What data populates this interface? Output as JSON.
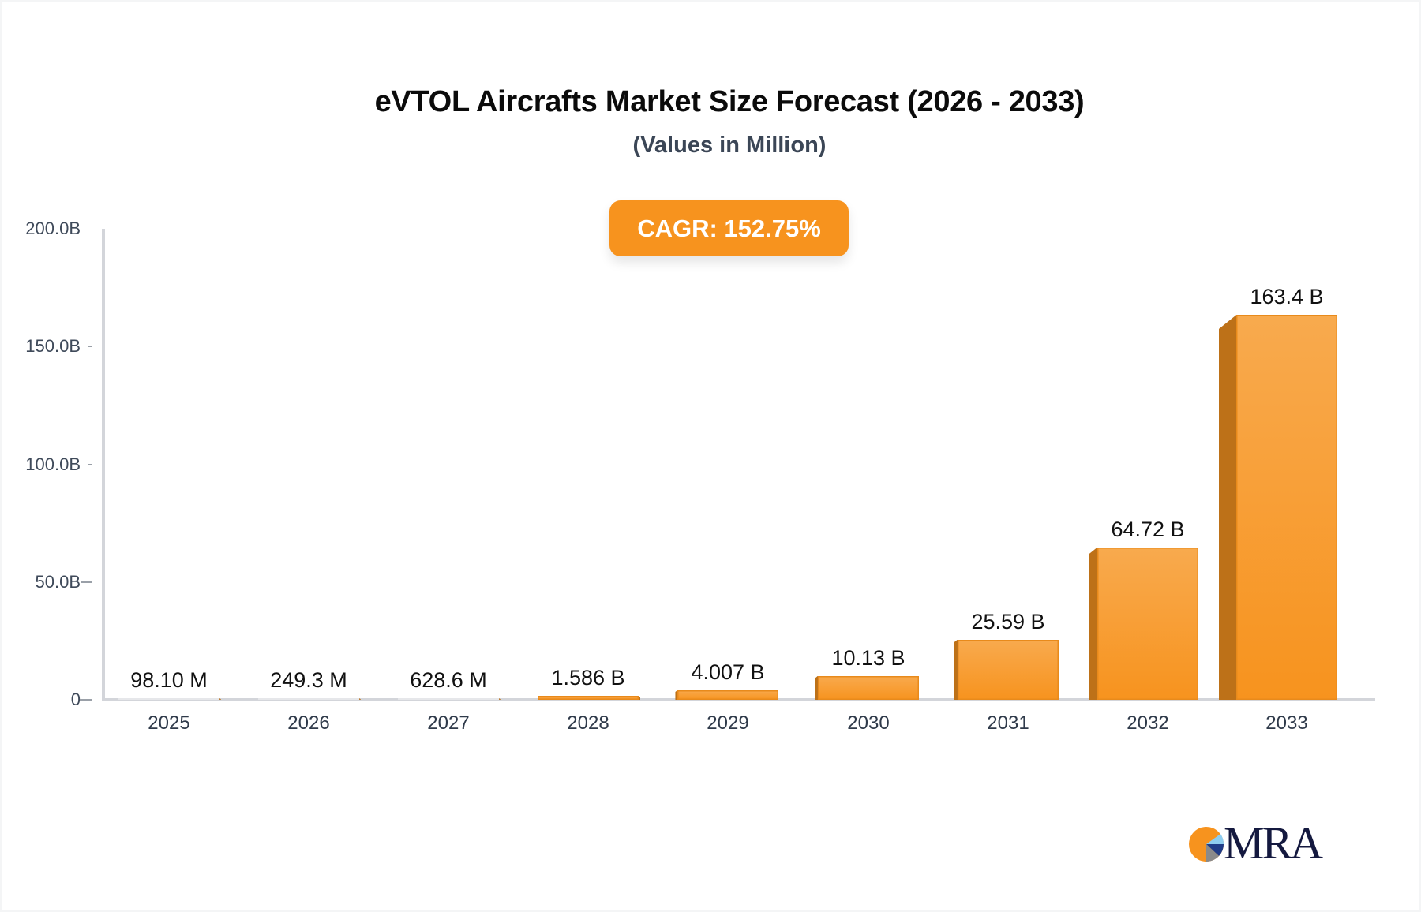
{
  "chart_data": {
    "type": "bar",
    "title": "eVTOL Aircrafts Market Size Forecast (2026 - 2033)",
    "subtitle": "(Values in Million)",
    "categories": [
      "2025",
      "2026",
      "2027",
      "2028",
      "2029",
      "2030",
      "2031",
      "2032",
      "2033"
    ],
    "values": [
      0.0981,
      0.2493,
      0.6286,
      1.586,
      4.007,
      10.13,
      25.59,
      64.72,
      163.4
    ],
    "value_unit": "B",
    "data_labels": [
      "98.10 M",
      "249.3 M",
      "628.6 M",
      "1.586 B",
      "4.007 B",
      "10.13 B",
      "25.59 B",
      "64.72 B",
      "163.4 B"
    ],
    "xlabel": "",
    "ylabel": "",
    "ylim": [
      0,
      200
    ],
    "y_ticks": [
      "0",
      "50.0B",
      "100.0B",
      "150.0B",
      "200.0B"
    ],
    "y_tick_values": [
      0,
      50,
      100,
      150,
      200
    ],
    "grid": false,
    "legend": null,
    "annotations": [
      "CAGR: 152.75%"
    ],
    "bar_color": "#f7931e",
    "bar_side_color": "#bd7118"
  },
  "cagr_badge": {
    "label": "CAGR: 152.75%",
    "color": "#f7931e"
  },
  "logo": {
    "text": "MRA"
  }
}
